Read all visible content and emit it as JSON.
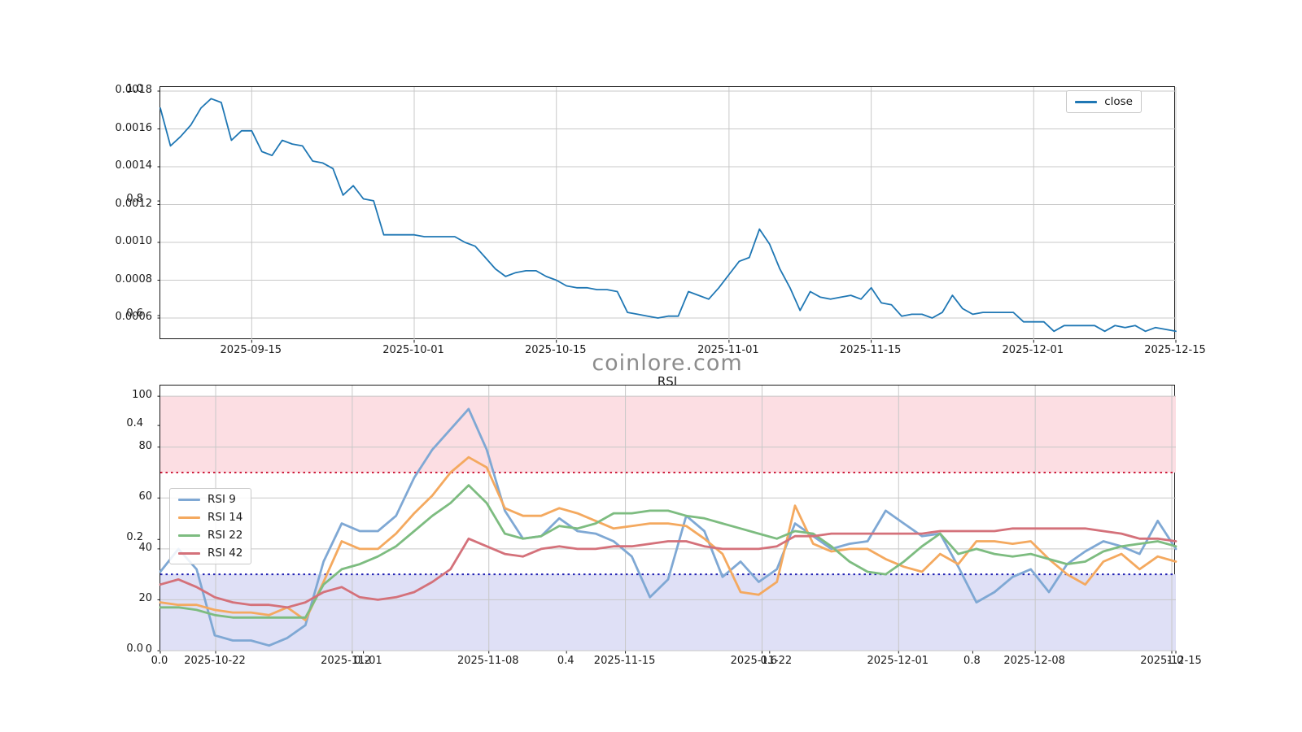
{
  "watermark": "coinlore.com",
  "chart_data": [
    {
      "type": "line",
      "title": "",
      "xlabel": "",
      "ylabel": "",
      "grid": true,
      "legend_position": "upper right",
      "ylim": [
        0.000484,
        0.0018215
      ],
      "yticks": [
        {
          "v": 0.0018,
          "label": "0.0018"
        },
        {
          "v": 0.0016,
          "label": "0.0016"
        },
        {
          "v": 0.0014,
          "label": "0.0014"
        },
        {
          "v": 0.0012,
          "label": "0.0012"
        },
        {
          "v": 0.001,
          "label": "0.0010"
        },
        {
          "v": 0.0008,
          "label": "0.0008"
        },
        {
          "v": 0.0006,
          "label": "0.0006"
        }
      ],
      "y2ticks": [
        {
          "v": 0.0018,
          "label": "1.0"
        },
        {
          "v": 0.001219,
          "label": "0.8"
        },
        {
          "v": 0.000613,
          "label": "0.6"
        }
      ],
      "xticks": [
        {
          "f": 0.09,
          "label": "2025-09-15"
        },
        {
          "f": 0.25,
          "label": "2025-10-01"
        },
        {
          "f": 0.39,
          "label": "2025-10-15"
        },
        {
          "f": 0.56,
          "label": "2025-11-01"
        },
        {
          "f": 0.7,
          "label": "2025-11-15"
        },
        {
          "f": 0.86,
          "label": "2025-12-01"
        },
        {
          "f": 1.0,
          "label": "2025-12-15"
        }
      ],
      "x_range": [
        "2025-09-06",
        "2025-12-15"
      ],
      "series": [
        {
          "name": "close",
          "color": "#1f77b4",
          "width": 1.8,
          "values": [
            0.00171,
            0.00151,
            0.00156,
            0.00162,
            0.00171,
            0.00176,
            0.00174,
            0.00154,
            0.00159,
            0.00159,
            0.00148,
            0.00146,
            0.00154,
            0.00152,
            0.00151,
            0.00143,
            0.00142,
            0.00139,
            0.00125,
            0.0013,
            0.00123,
            0.00122,
            0.00104,
            0.00104,
            0.00104,
            0.00104,
            0.00103,
            0.00103,
            0.00103,
            0.00103,
            0.001,
            0.00098,
            0.00092,
            0.00086,
            0.00082,
            0.00084,
            0.00085,
            0.00085,
            0.00082,
            0.0008,
            0.00077,
            0.00076,
            0.00076,
            0.00075,
            0.00075,
            0.00074,
            0.00063,
            0.00062,
            0.00061,
            0.0006,
            0.00061,
            0.00061,
            0.00074,
            0.00072,
            0.0007,
            0.00076,
            0.00083,
            0.0009,
            0.00092,
            0.00107,
            0.00099,
            0.00086,
            0.00076,
            0.00064,
            0.00074,
            0.00071,
            0.0007,
            0.00071,
            0.00072,
            0.0007,
            0.00076,
            0.00068,
            0.00067,
            0.00061,
            0.00062,
            0.00062,
            0.0006,
            0.00063,
            0.00072,
            0.00065,
            0.00062,
            0.00063,
            0.00063,
            0.00063,
            0.00063,
            0.00058,
            0.00058,
            0.00058,
            0.00053,
            0.00056,
            0.00056,
            0.00056,
            0.00056,
            0.00053,
            0.00056,
            0.00055,
            0.00056,
            0.00053,
            0.00055,
            0.00054,
            0.00053
          ]
        }
      ]
    },
    {
      "type": "line",
      "title": "RSI",
      "xlabel": "",
      "ylabel": "",
      "grid": true,
      "legend_position": "center left",
      "ylim": [
        0,
        104.2
      ],
      "yticks": [
        {
          "v": 100,
          "label": "100"
        },
        {
          "v": 80,
          "label": "80"
        },
        {
          "v": 60,
          "label": "60"
        },
        {
          "v": 40,
          "label": "40"
        },
        {
          "v": 20,
          "label": "20"
        },
        {
          "v": 0,
          "label": "0"
        }
      ],
      "y2ticks": [
        {
          "v": 88.5,
          "label": "0.4"
        },
        {
          "v": 43.7,
          "label": "0.2"
        },
        {
          "v": 0,
          "label": "0.0"
        }
      ],
      "xticks": [
        {
          "f": 0.0545,
          "label": "2025-10-22"
        },
        {
          "f": 0.189,
          "label": "2025-11-01"
        },
        {
          "f": 0.3235,
          "label": "2025-11-08"
        },
        {
          "f": 0.458,
          "label": "2025-11-15"
        },
        {
          "f": 0.5925,
          "label": "2025-11-22"
        },
        {
          "f": 0.727,
          "label": "2025-12-01"
        },
        {
          "f": 0.8615,
          "label": "2025-12-08"
        },
        {
          "f": 0.996,
          "label": "2025-12-15"
        }
      ],
      "x2ticks": [
        {
          "f": 0.0,
          "label": "0.0"
        },
        {
          "f": 0.2,
          "label": "0.2"
        },
        {
          "f": 0.4,
          "label": "0.4"
        },
        {
          "f": 0.6,
          "label": "0.6"
        },
        {
          "f": 0.8,
          "label": "0.8"
        },
        {
          "f": 1.0,
          "label": "1.0"
        }
      ],
      "x_range": [
        "2025-10-19",
        "2025-12-15"
      ],
      "bands": [
        {
          "from": 70,
          "to": 100,
          "color": "#fcdee3",
          "meaning": "overbought"
        },
        {
          "from": 0,
          "to": 30,
          "color": "#dfe0f6",
          "meaning": "oversold"
        }
      ],
      "hlines": [
        {
          "v": 70,
          "color": "#cf1f3e",
          "style": "dotted"
        },
        {
          "v": 30,
          "color": "#2323b4",
          "style": "dotted"
        }
      ],
      "series": [
        {
          "name": "RSI 9",
          "color": "#7fa8d4",
          "width": 2.8,
          "values": [
            31,
            40,
            32,
            6,
            4,
            4,
            2,
            5,
            10,
            35,
            50,
            47,
            47,
            53,
            68,
            79,
            87,
            95,
            79,
            55,
            44,
            45,
            52,
            47,
            46,
            43,
            37,
            21,
            28,
            53,
            47,
            29,
            35,
            27,
            32,
            50,
            45,
            40,
            42,
            43,
            55,
            50,
            45,
            46,
            33,
            19,
            23,
            29,
            32,
            23,
            34,
            39,
            43,
            41,
            38,
            51,
            40
          ]
        },
        {
          "name": "RSI 14",
          "color": "#f4a95f",
          "width": 2.8,
          "values": [
            19,
            18,
            18,
            16,
            15,
            15,
            14,
            17,
            12,
            27,
            43,
            40,
            40,
            46,
            54,
            61,
            70,
            76,
            72,
            56,
            53,
            53,
            56,
            54,
            51,
            48,
            49,
            50,
            50,
            49,
            44,
            38,
            23,
            22,
            27,
            57,
            42,
            39,
            40,
            40,
            36,
            33,
            31,
            38,
            34,
            43,
            43,
            42,
            43,
            36,
            30,
            26,
            35,
            38,
            32,
            37,
            35
          ]
        },
        {
          "name": "RSI 22",
          "color": "#7dbc80",
          "width": 2.8,
          "values": [
            17,
            17,
            16,
            14,
            13,
            13,
            13,
            13,
            13,
            26,
            32,
            34,
            37,
            41,
            47,
            53,
            58,
            65,
            58,
            46,
            44,
            45,
            49,
            48,
            50,
            54,
            54,
            55,
            55,
            53,
            52,
            50,
            48,
            46,
            44,
            47,
            46,
            41,
            35,
            31,
            30,
            35,
            41,
            46,
            38,
            40,
            38,
            37,
            38,
            36,
            34,
            35,
            39,
            41,
            42,
            43,
            41
          ]
        },
        {
          "name": "RSI 42",
          "color": "#d4717a",
          "width": 2.8,
          "values": [
            26,
            28,
            25,
            21,
            19,
            18,
            18,
            17,
            19,
            23,
            25,
            21,
            20,
            21,
            23,
            27,
            32,
            44,
            41,
            38,
            37,
            40,
            41,
            40,
            40,
            41,
            41,
            42,
            43,
            43,
            41,
            40,
            40,
            40,
            41,
            45,
            45,
            46,
            46,
            46,
            46,
            46,
            46,
            47,
            47,
            47,
            47,
            48,
            48,
            48,
            48,
            48,
            47,
            46,
            44,
            44,
            43
          ]
        }
      ]
    }
  ]
}
